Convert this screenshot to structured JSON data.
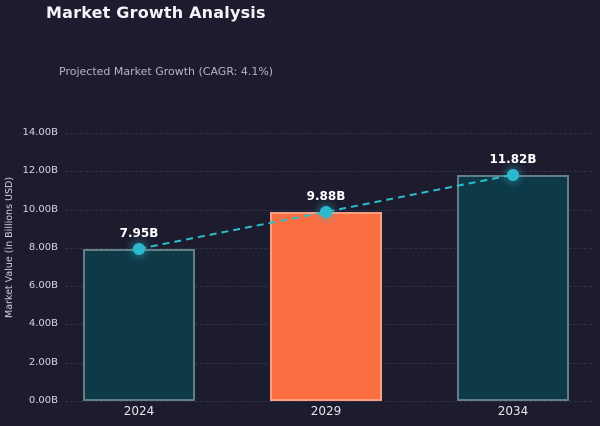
{
  "page": {
    "background": "#1c1c2e"
  },
  "header": {
    "title": "Market Growth Analysis",
    "subtitle": "Projected Market Growth (CAGR: 4.1%)"
  },
  "chart_data": {
    "type": "bar",
    "title": "Market Growth Analysis",
    "subtitle": "Projected Market Growth (CAGR: 4.1%)",
    "categories": [
      "2024",
      "2029",
      "2034"
    ],
    "values": [
      7.95,
      9.88,
      11.82
    ],
    "value_labels": [
      "7.95B",
      "9.88B",
      "11.82B"
    ],
    "bar_colors": [
      "#0e3947",
      "#fb6e42",
      "#0e3947"
    ],
    "bar_edge_color": "rgba(255,255,255,0.35)",
    "xlabel": "",
    "ylabel": "Market Value (in Billions USD)",
    "ylim": [
      0,
      14
    ],
    "yticks": [
      {
        "value": 0,
        "label": "0.00B"
      },
      {
        "value": 2,
        "label": "2.00B"
      },
      {
        "value": 4,
        "label": "4.00B"
      },
      {
        "value": 6,
        "label": "6.00B"
      },
      {
        "value": 8,
        "label": "8.00B"
      },
      {
        "value": 10,
        "label": "10.00B"
      },
      {
        "value": 12,
        "label": "12.00B"
      },
      {
        "value": 14,
        "label": "14.00B"
      }
    ],
    "grid": "horizontal-dashed",
    "legend": "none",
    "line_overlay": {
      "type": "line",
      "style": "dashed",
      "color": "#2fbccd",
      "marker_color": "#2cb9ce",
      "values": [
        7.95,
        9.88,
        11.82
      ]
    }
  }
}
